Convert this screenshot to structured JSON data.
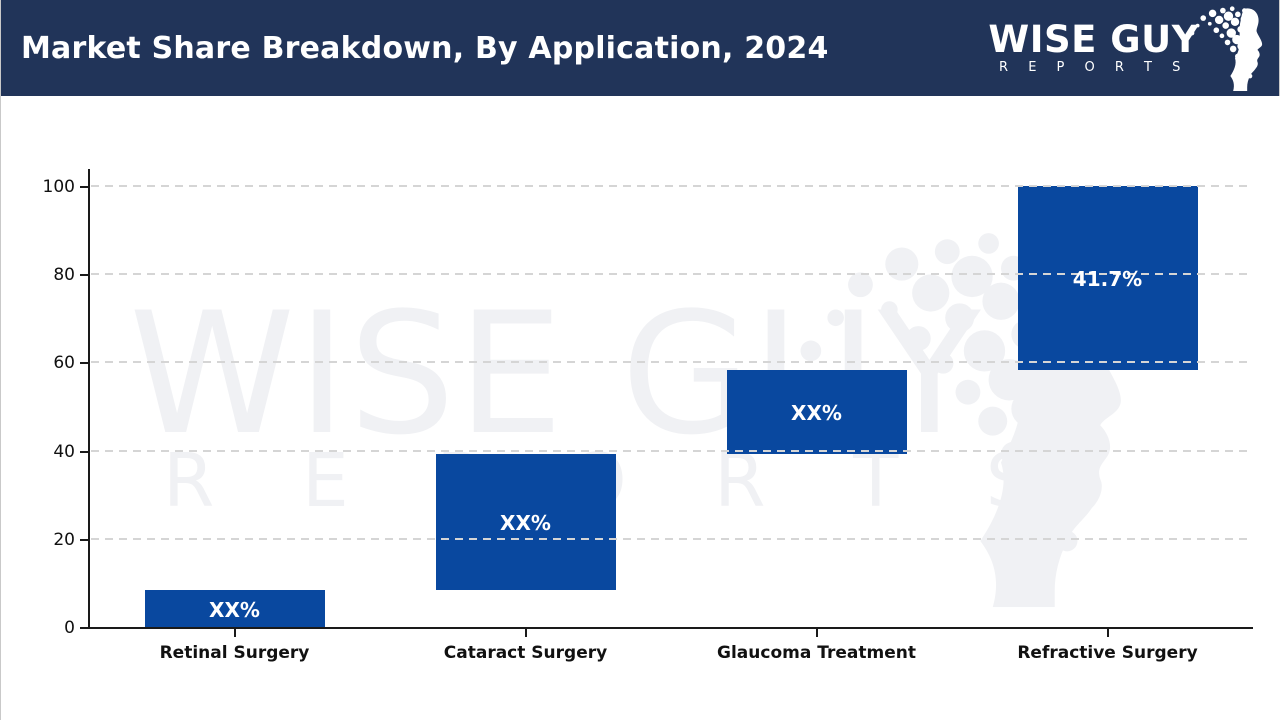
{
  "header": {
    "title": "Market Share Breakdown, By Application, 2024",
    "logo": {
      "name": "WISE GUY",
      "tagline": "R E P O R T S"
    }
  },
  "watermark": {
    "name": "WISE GUY",
    "tagline": "R E P O R T S"
  },
  "colors": {
    "header_bg": "#213459",
    "bar": "#09489F",
    "grid": "#D5D5D5",
    "axis": "#1A1A1A",
    "watermark": "#F0F1F4",
    "frame_border": "#C9C9C9",
    "bar_label_text": "#FFFFFF",
    "tick_text": "#111111"
  },
  "chart_data": {
    "type": "bar",
    "subtype": "waterfall",
    "title": "Market Share Breakdown, By Application, 2024",
    "xlabel": "",
    "ylabel": "",
    "ylim": [
      0,
      100
    ],
    "yticks": [
      0,
      20,
      40,
      60,
      80,
      100
    ],
    "grid": "horizontal-dashed-over-bars",
    "legend": "none",
    "categories": [
      "Retinal Surgery",
      "Cataract Surgery",
      "Glaucoma Treatment",
      "Refractive Surgery"
    ],
    "bars": [
      {
        "category": "Retinal Surgery",
        "start": 0,
        "end": 8.3,
        "value": 8.3,
        "label": "XX%"
      },
      {
        "category": "Cataract Surgery",
        "start": 8.3,
        "end": 39.3,
        "value": 31.0,
        "label": "XX%"
      },
      {
        "category": "Glaucoma Treatment",
        "start": 39.3,
        "end": 58.3,
        "value": 19.0,
        "label": "XX%"
      },
      {
        "category": "Refractive Surgery",
        "start": 58.3,
        "end": 100,
        "value": 41.7,
        "label": "41.7%"
      }
    ],
    "bar_color": "#09489F"
  }
}
